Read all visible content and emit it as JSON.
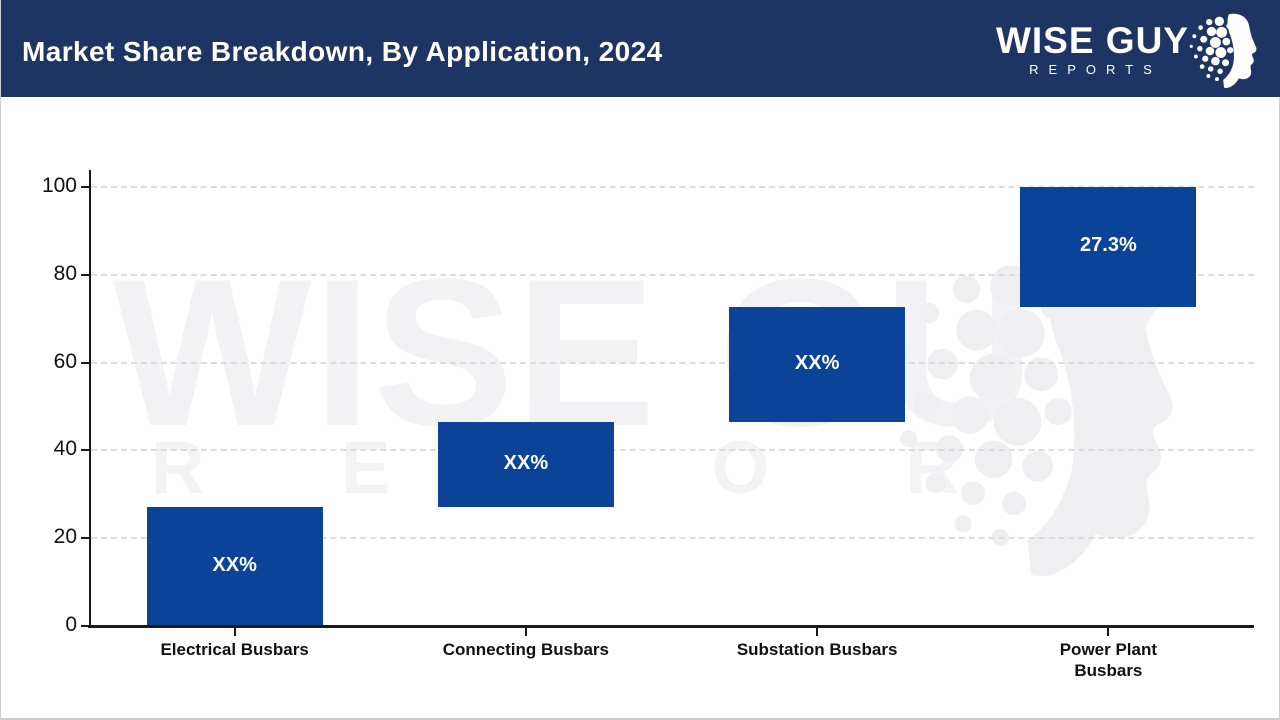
{
  "header": {
    "title": "Market Share Breakdown, By Application, 2024",
    "logo": {
      "line1": "WISE GUY",
      "line2": "REPORTS"
    }
  },
  "watermark": {
    "line1": "WISE GUY",
    "line2": "R E P O R T S"
  },
  "colors": {
    "header_bg": "#1e3462",
    "bar": "#0a4398",
    "grid": "#dcdcdc",
    "axis": "#1a1a1a",
    "watermark": "#f2f2f4"
  },
  "chart_data": {
    "type": "bar",
    "subtype": "floating-waterfall",
    "title": "Market Share Breakdown, By Application, 2024",
    "xlabel": "",
    "ylabel": "",
    "ylim": [
      0,
      104
    ],
    "yticks": [
      0,
      20,
      40,
      60,
      80,
      100
    ],
    "grid": "dashed-horizontal",
    "legend": "none",
    "bar_color": "#0a4398",
    "categories": [
      "Electrical Busbars",
      "Connecting Busbars",
      "Substation Busbars",
      "Power Plant Busbars"
    ],
    "category_lines": [
      [
        "Electrical Busbars"
      ],
      [
        "Connecting Busbars"
      ],
      [
        "Substation Busbars"
      ],
      [
        "Power Plant",
        "Busbars"
      ]
    ],
    "segments": [
      {
        "category": "Electrical Busbars",
        "start": 0,
        "end": 27,
        "label": "XX%"
      },
      {
        "category": "Connecting Busbars",
        "start": 27,
        "end": 46.4,
        "label": "XX%"
      },
      {
        "category": "Substation Busbars",
        "start": 46.4,
        "end": 72.7,
        "label": "XX%"
      },
      {
        "category": "Power Plant Busbars",
        "start": 72.7,
        "end": 100,
        "label": "27.3%"
      }
    ]
  }
}
